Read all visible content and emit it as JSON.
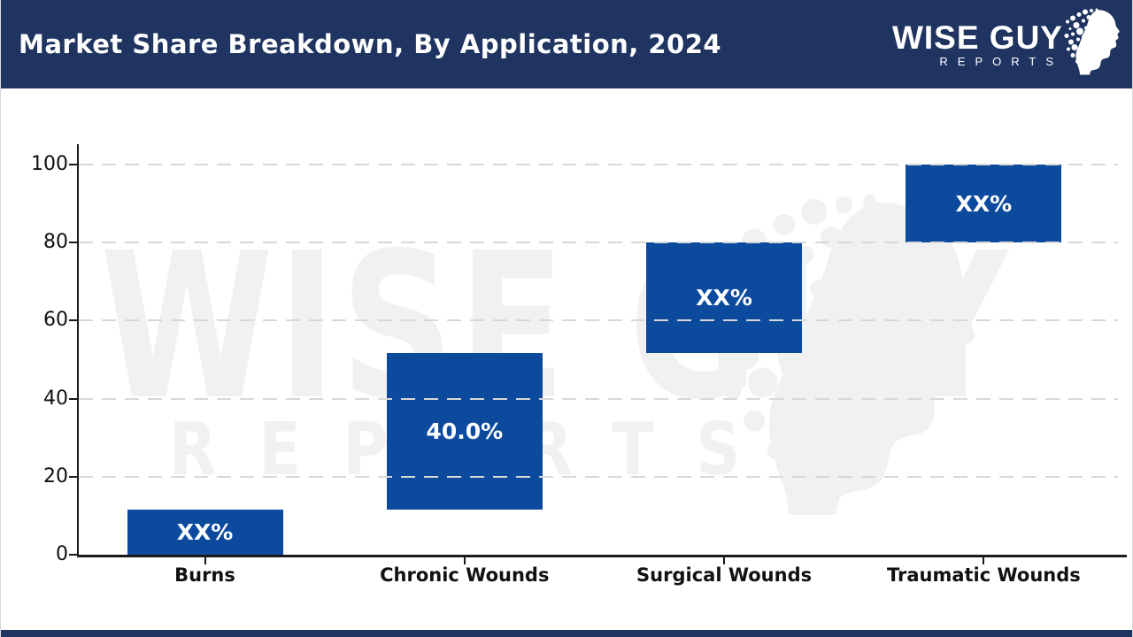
{
  "header": {
    "title": "Market Share Breakdown, By Application, 2024",
    "logo": {
      "line1": "WISE GUY",
      "line2": "REPORTS"
    }
  },
  "watermark": {
    "line1": "WISE GUY",
    "line2": "REPORTS"
  },
  "chart_data": {
    "type": "bar",
    "variant": "waterfall",
    "title": "Market Share Breakdown, By Application, 2024",
    "categories": [
      "Burns",
      "Chronic Wounds",
      "Surgical Wounds",
      "Traumatic Wounds"
    ],
    "segments": [
      {
        "category": "Burns",
        "start": 0,
        "end": 11.6,
        "value": 11.6,
        "label": "XX%"
      },
      {
        "category": "Chronic Wounds",
        "start": 11.6,
        "end": 51.6,
        "value": 40.0,
        "label": "40.0%"
      },
      {
        "category": "Surgical Wounds",
        "start": 51.6,
        "end": 80,
        "value": 28.4,
        "label": "XX%"
      },
      {
        "category": "Traumatic Wounds",
        "start": 80,
        "end": 100,
        "value": 20.0,
        "label": "XX%"
      }
    ],
    "ylim": [
      0,
      100
    ],
    "yticks": [
      0,
      20,
      40,
      60,
      80,
      100
    ],
    "xlabel": "",
    "ylabel": "",
    "grid": "horizontal-dashed",
    "legend": "none",
    "bar_color": "#0c4a9e",
    "bar_label_color": "#ffffff"
  },
  "colors": {
    "header_bg": "#1f3461",
    "footer_bg": "#1f3461",
    "bar": "#0c4a9e",
    "grid": "#d8d8d8",
    "axis": "#1a1a1a",
    "watermark": "#f1f1f1",
    "title_text": "#ffffff"
  }
}
